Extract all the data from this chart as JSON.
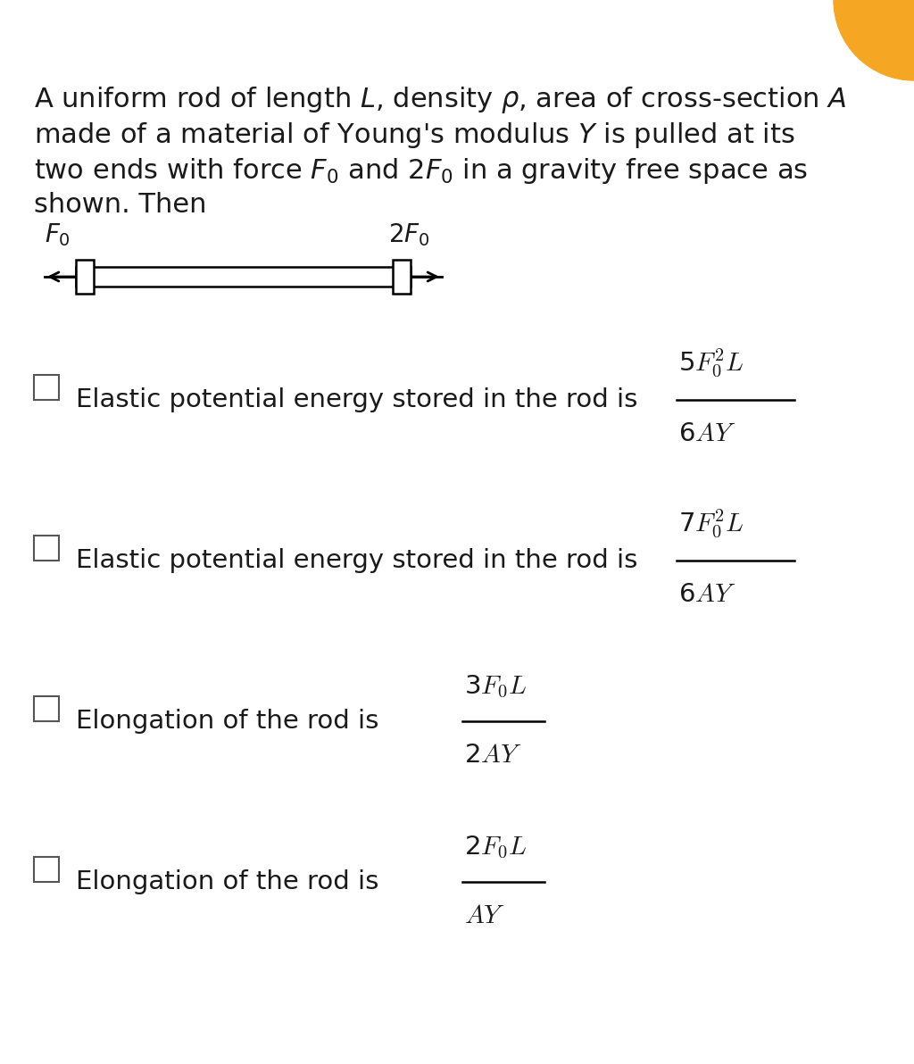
{
  "bg_color": "#ffffff",
  "text_color": "#1a1a1a",
  "orange_color": "#f5a623",
  "figsize": [
    10.24,
    11.92
  ],
  "dpi": 100,
  "options": [
    {
      "text": "Elastic potential energy stored in the rod is",
      "num": "5$F_0^{2}$$L$",
      "den": "6$AY$"
    },
    {
      "text": "Elastic potential energy stored in the rod is",
      "num": "7$F_0^{2}$$L$",
      "den": "6$AY$"
    },
    {
      "text": "Elongation of the rod is",
      "num": "3$F_0$$L$",
      "den": "2$AY$"
    },
    {
      "text": "Elongation of the rod is",
      "num": "2$F_0$$L$",
      "den": "$AY$"
    }
  ]
}
